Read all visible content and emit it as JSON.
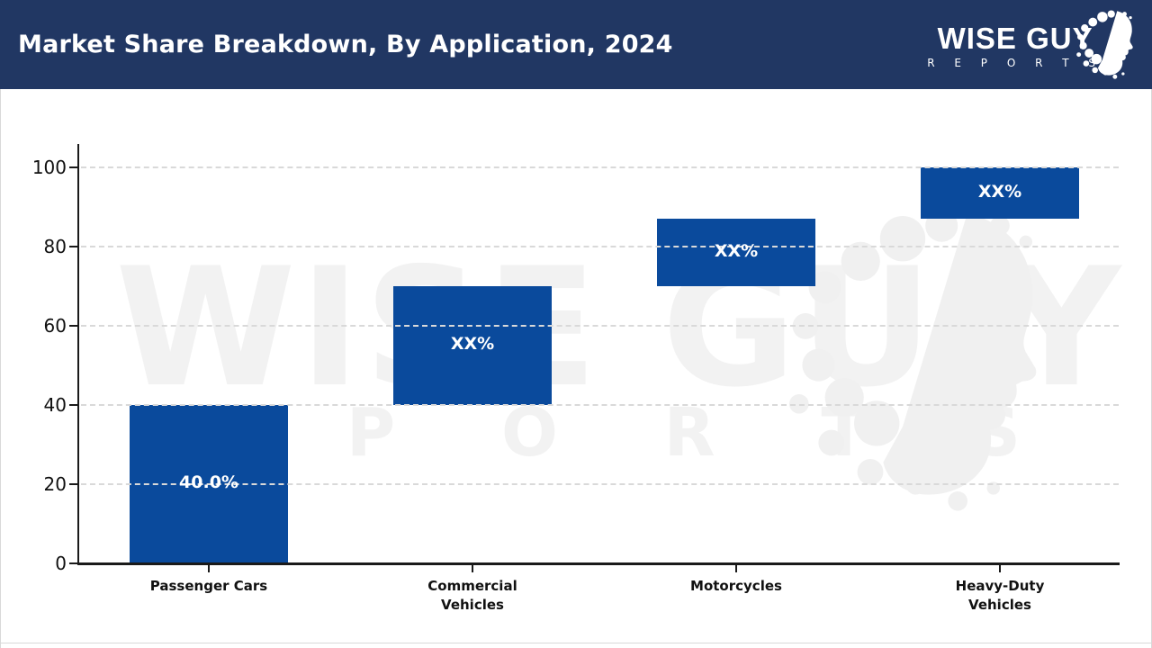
{
  "header": {
    "title": "Market Share Breakdown, By Application, 2024",
    "logo": {
      "line1": "WISE GUY",
      "line2": "R E P O R T S"
    }
  },
  "watermark": {
    "line1": "WISE GU·Y",
    "line2": "P O R T S"
  },
  "chart_data": {
    "type": "bar",
    "subtype": "waterfall",
    "title": "Market Share Breakdown, By Application, 2024",
    "categories": [
      "Passenger Cars",
      "Commercial\nVehicles",
      "Motorcycles",
      "Heavy-Duty\nVehicles"
    ],
    "segments": [
      {
        "category": "Passenger Cars",
        "start": 0,
        "end": 40,
        "label": "40.0%"
      },
      {
        "category": "Commercial\nVehicles",
        "start": 40,
        "end": 70,
        "label": "XX%"
      },
      {
        "category": "Motorcycles",
        "start": 70,
        "end": 87,
        "label": "XX%"
      },
      {
        "category": "Heavy-Duty\nVehicles",
        "start": 87,
        "end": 100,
        "label": "XX%"
      }
    ],
    "yticks": [
      0,
      20,
      40,
      60,
      80,
      100
    ],
    "ylim": [
      0,
      106
    ],
    "xlabel": "",
    "ylabel": "",
    "grid": "horizontal-dashed",
    "legend": "none",
    "bar_color": "#0a4a9c",
    "bar_label_color": "#ffffff"
  },
  "colors": {
    "header_bg": "#213763",
    "accent_blue": "#0a4a9c",
    "watermark": "#f2f2f2",
    "gridline": "#d9d9d9",
    "axis": "#1a1a1a"
  }
}
